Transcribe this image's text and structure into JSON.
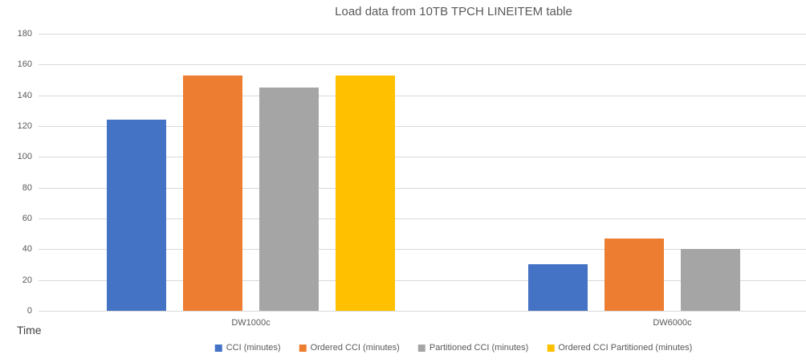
{
  "chart_data": {
    "type": "bar",
    "title": "Load data from 10TB TPCH LINEITEM table",
    "categories": [
      "DW1000c",
      "DW6000c"
    ],
    "series": [
      {
        "name": "CCI (minutes)",
        "color": "#4472C4",
        "values": [
          124,
          30
        ]
      },
      {
        "name": "Ordered CCI (minutes)",
        "color": "#ED7D31",
        "values": [
          153,
          47
        ]
      },
      {
        "name": "Partitioned CCI (minutes)",
        "color": "#A5A5A5",
        "values": [
          145,
          40
        ]
      },
      {
        "name": "Ordered CCI Partitioned (minutes)",
        "color": "#FFC000",
        "values": [
          153,
          null
        ]
      }
    ],
    "ylabel": "Time",
    "xlabel": "",
    "ylim": [
      0,
      180
    ],
    "yticks": [
      0,
      20,
      40,
      60,
      80,
      100,
      120,
      140,
      160,
      180
    ],
    "grid": true,
    "legend_position": "bottom",
    "colors": {
      "gridline": "#D9D9D9",
      "axis_text": "#595959",
      "title_text": "#595959",
      "axis_label_text": "#404040"
    }
  }
}
